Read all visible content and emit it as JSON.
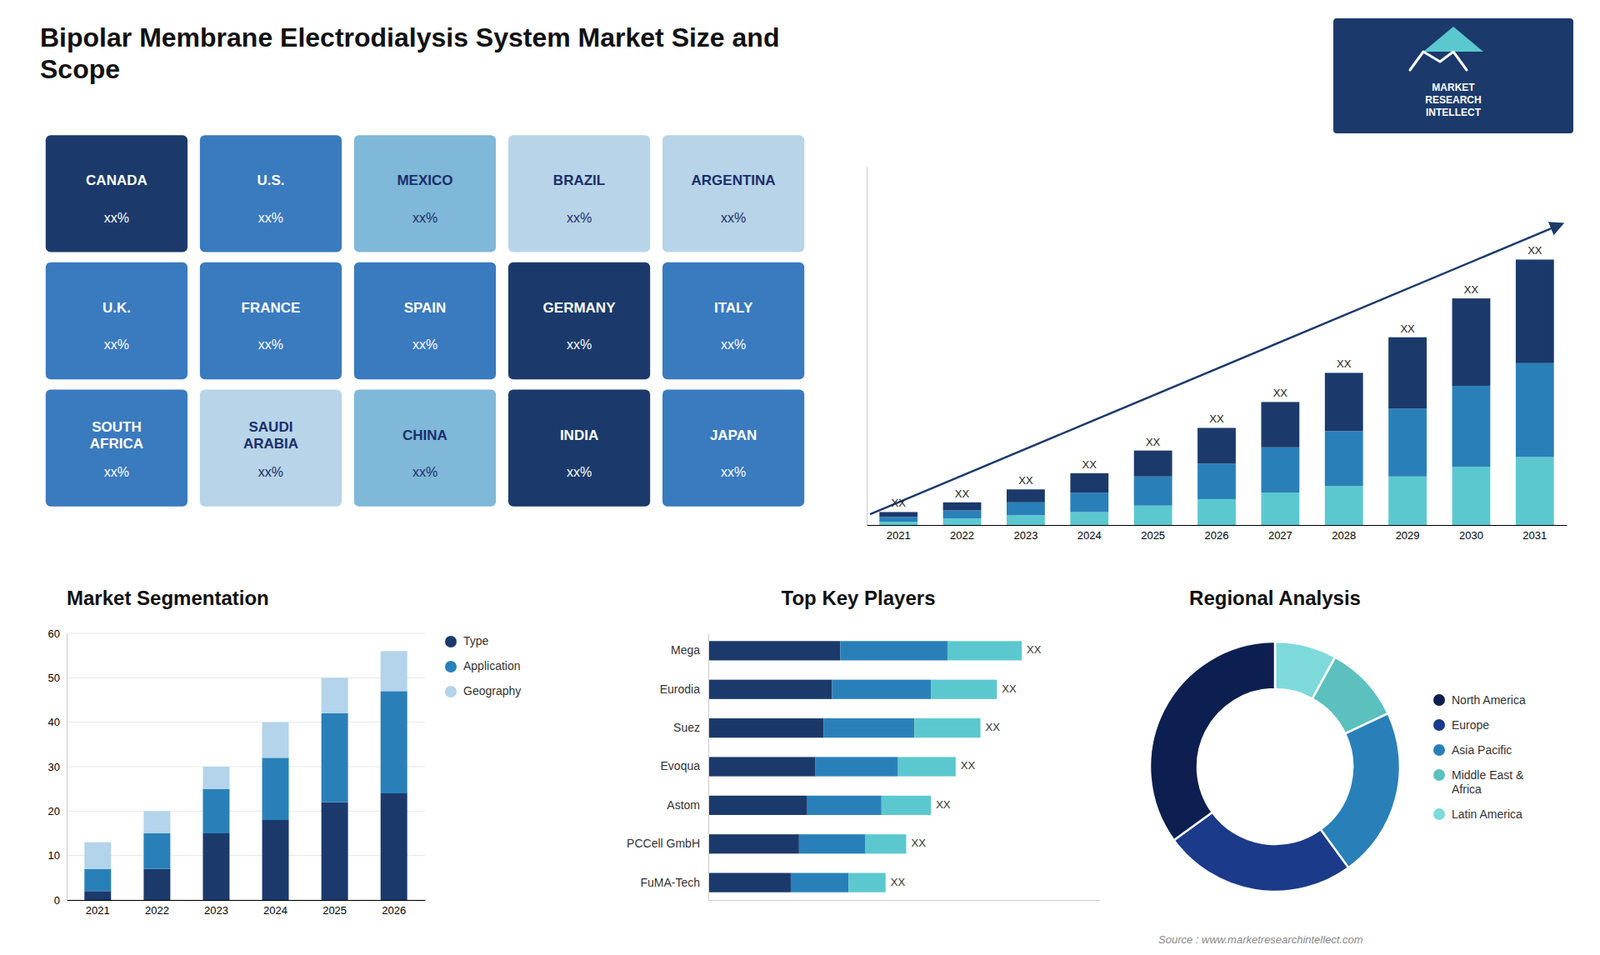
{
  "chart_data": [
    {
      "type": "bar",
      "title": "Bipolar Membrane Electrodialysis System Market Size and\nScope",
      "stacked": true,
      "tick_labels": "x",
      "categories": [
        "2021",
        "2022",
        "2023",
        "2024",
        "2025",
        "2026",
        "2027",
        "2028",
        "2029",
        "2030",
        "2031"
      ],
      "series": [
        {
          "color": "#5bc8cf",
          "values": [
            1,
            2,
            3,
            4,
            6,
            8,
            10,
            12,
            15,
            18,
            21
          ]
        },
        {
          "color": "#2980b9",
          "values": [
            1.5,
            2.5,
            4,
            6,
            9,
            11,
            14,
            17,
            21,
            25,
            29
          ]
        },
        {
          "color": "#1b3a6b",
          "values": [
            1.5,
            2.5,
            4,
            6,
            8,
            11,
            14,
            18,
            22,
            27,
            32
          ],
          "value_labels": [
            "XX",
            "XX",
            "XX",
            "XX",
            "XX",
            "XX",
            "XX",
            "XX",
            "XX",
            "XX",
            "XX"
          ]
        }
      ],
      "ylim": [
        0,
        110.7
      ],
      "annotations": [
        "MARKET\nRESEARCH\nINTELLECT"
      ]
    },
    {
      "type": "map",
      "categories": [
        "CANADA",
        "U.S.",
        "MEXICO",
        "BRAZIL",
        "ARGENTINA",
        "U.K.",
        "FRANCE",
        "SPAIN",
        "GERMANY",
        "ITALY",
        "SOUTH\nAFRICA",
        "SAUDI\nARABIA",
        "CHINA",
        "INDIA",
        "JAPAN"
      ],
      "value_labels": [
        "xx%",
        "xx%",
        "xx%",
        "xx%",
        "xx%",
        "xx%",
        "xx%",
        "xx%",
        "xx%",
        "xx%",
        "xx%",
        "xx%",
        "xx%",
        "xx%",
        "xx%"
      ],
      "colors": [
        "#1b3a6b",
        "#3a7abf",
        "#7fb8d8",
        "#b8d4e8",
        "#b8d4e8",
        "#3a7abf",
        "#3a7abf",
        "#3a7abf",
        "#1b3a6b",
        "#3a7abf",
        "#3a7abf",
        "#b8d4e8",
        "#7fb8d8",
        "#1b3a6b",
        "#3a7abf"
      ]
    },
    {
      "type": "bar",
      "title": "Market Segmentation",
      "stacked": true,
      "grid": true,
      "legend": "right",
      "categories": [
        "2021",
        "2022",
        "2023",
        "2024",
        "2025",
        "2026"
      ],
      "series": [
        {
          "name": "Type",
          "color": "#1b3a6b",
          "values": [
            2,
            7,
            15,
            18,
            22,
            24
          ]
        },
        {
          "name": "Application",
          "color": "#2980b9",
          "values": [
            5,
            8,
            10,
            14,
            20,
            23
          ]
        },
        {
          "name": "Geography",
          "color": "#b3d4ea",
          "values": [
            6,
            5,
            5,
            8,
            8,
            9
          ]
        }
      ],
      "ylim": [
        0,
        60
      ],
      "yticks": [
        0,
        10,
        20,
        30,
        40,
        50,
        60
      ]
    },
    {
      "type": "bar",
      "title": "Top Key Players",
      "orientation": "horizontal",
      "stacked": true,
      "tick_labels": "y",
      "categories": [
        "Mega",
        "Eurodia",
        "Suez",
        "Evoqua",
        "Astom",
        "PCCell GmbH",
        "FuMA-Tech"
      ],
      "series": [
        {
          "color": "#1b3a6b",
          "values": [
            0.32,
            0.3,
            0.28,
            0.26,
            0.24,
            0.22,
            0.2
          ]
        },
        {
          "color": "#2980b9",
          "values": [
            0.26,
            0.24,
            0.22,
            0.2,
            0.18,
            0.16,
            0.14
          ]
        },
        {
          "color": "#5bc8cf",
          "values": [
            0.18,
            0.16,
            0.16,
            0.14,
            0.12,
            0.1,
            0.09
          ],
          "value_labels": [
            "XX",
            "XX",
            "XX",
            "XX",
            "XX",
            "XX",
            "XX"
          ]
        }
      ],
      "xlim": [
        0,
        0.95
      ]
    },
    {
      "type": "donut",
      "title": "Regional Analysis",
      "legend": "right",
      "categories": [
        "Latin America",
        "Middle East &\nAfrica",
        "Asia Pacific",
        "Europe",
        "North America"
      ],
      "values": [
        8,
        10,
        22,
        25,
        35
      ],
      "colors": [
        "#7edada",
        "#5bc0be",
        "#2980b9",
        "#1b3a8a",
        "#0d1f50"
      ],
      "annotations": [
        "Source : www.marketresearchintellect.com"
      ]
    }
  ]
}
